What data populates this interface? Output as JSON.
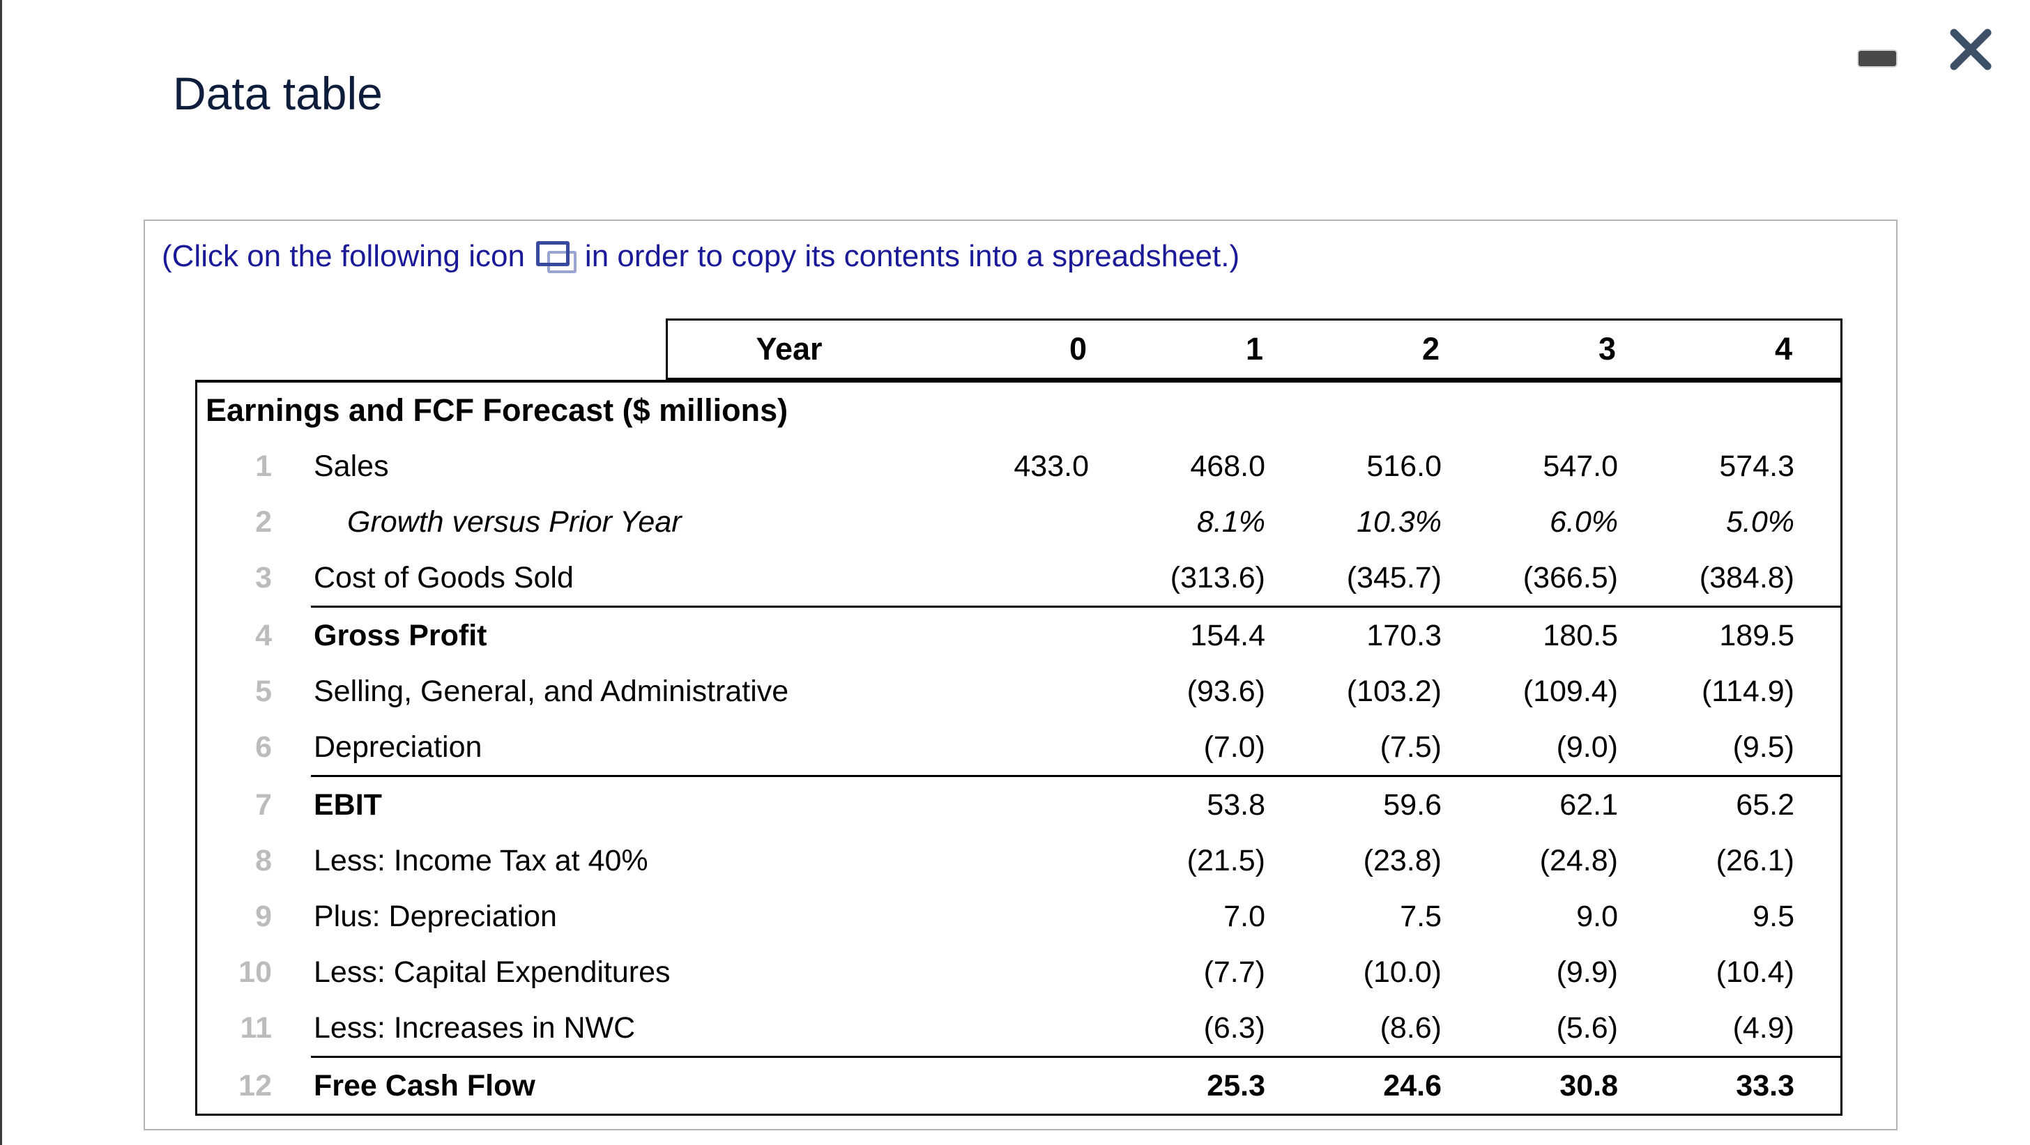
{
  "window": {
    "title": "Data table"
  },
  "instruction": {
    "pre": "(Click on the following icon",
    "post": "in order to copy its contents into a spreadsheet.)"
  },
  "table": {
    "header": {
      "label": "Year",
      "years": [
        "0",
        "1",
        "2",
        "3",
        "4"
      ]
    },
    "section_title": "Earnings and FCF Forecast ($ millions)",
    "rows": [
      {
        "num": "1",
        "label": "Sales",
        "values": [
          "433.0",
          "468.0",
          "516.0",
          "547.0",
          "574.3"
        ]
      },
      {
        "num": "2",
        "label": "Growth versus Prior Year",
        "italic": true,
        "indent": true,
        "values": [
          "",
          "8.1%",
          "10.3%",
          "6.0%",
          "5.0%"
        ]
      },
      {
        "num": "3",
        "label": "Cost of Goods Sold",
        "values": [
          "",
          "(313.6)",
          "(345.7)",
          "(366.5)",
          "(384.8)"
        ],
        "divider_after": true
      },
      {
        "num": "4",
        "label": "Gross Profit",
        "label_bold": true,
        "values": [
          "",
          "154.4",
          "170.3",
          "180.5",
          "189.5"
        ]
      },
      {
        "num": "5",
        "label": "Selling, General, and Administrative",
        "values": [
          "",
          "(93.6)",
          "(103.2)",
          "(109.4)",
          "(114.9)"
        ]
      },
      {
        "num": "6",
        "label": "Depreciation",
        "values": [
          "",
          "(7.0)",
          "(7.5)",
          "(9.0)",
          "(9.5)"
        ],
        "divider_after": true
      },
      {
        "num": "7",
        "label": "EBIT",
        "label_bold": true,
        "values": [
          "",
          "53.8",
          "59.6",
          "62.1",
          "65.2"
        ]
      },
      {
        "num": "8",
        "label": "Less: Income Tax at 40%",
        "values": [
          "",
          "(21.5)",
          "(23.8)",
          "(24.8)",
          "(26.1)"
        ]
      },
      {
        "num": "9",
        "label": "Plus: Depreciation",
        "values": [
          "",
          "7.0",
          "7.5",
          "9.0",
          "9.5"
        ]
      },
      {
        "num": "10",
        "label": "Less: Capital Expenditures",
        "values": [
          "",
          "(7.7)",
          "(10.0)",
          "(9.9)",
          "(10.4)"
        ]
      },
      {
        "num": "11",
        "label": "Less: Increases in NWC",
        "values": [
          "",
          "(6.3)",
          "(8.6)",
          "(5.6)",
          "(4.9)"
        ],
        "divider_after": true
      },
      {
        "num": "12",
        "label": "Free Cash Flow",
        "label_bold": true,
        "values_bold": true,
        "values": [
          "",
          "25.3",
          "24.6",
          "30.8",
          "33.3"
        ]
      }
    ]
  },
  "colors": {
    "title_navy": "#0e1d3c",
    "instruction_blue": "#1a1a99",
    "copy_icon_dark": "#3a49a0",
    "copy_icon_light": "#9aa5d2",
    "close_x": "#3e5065",
    "minimize_bar": "#484848",
    "box_border_gray": "#b3b3b3",
    "row_number_gray": "#bcbcbc",
    "table_border": "#000000"
  }
}
